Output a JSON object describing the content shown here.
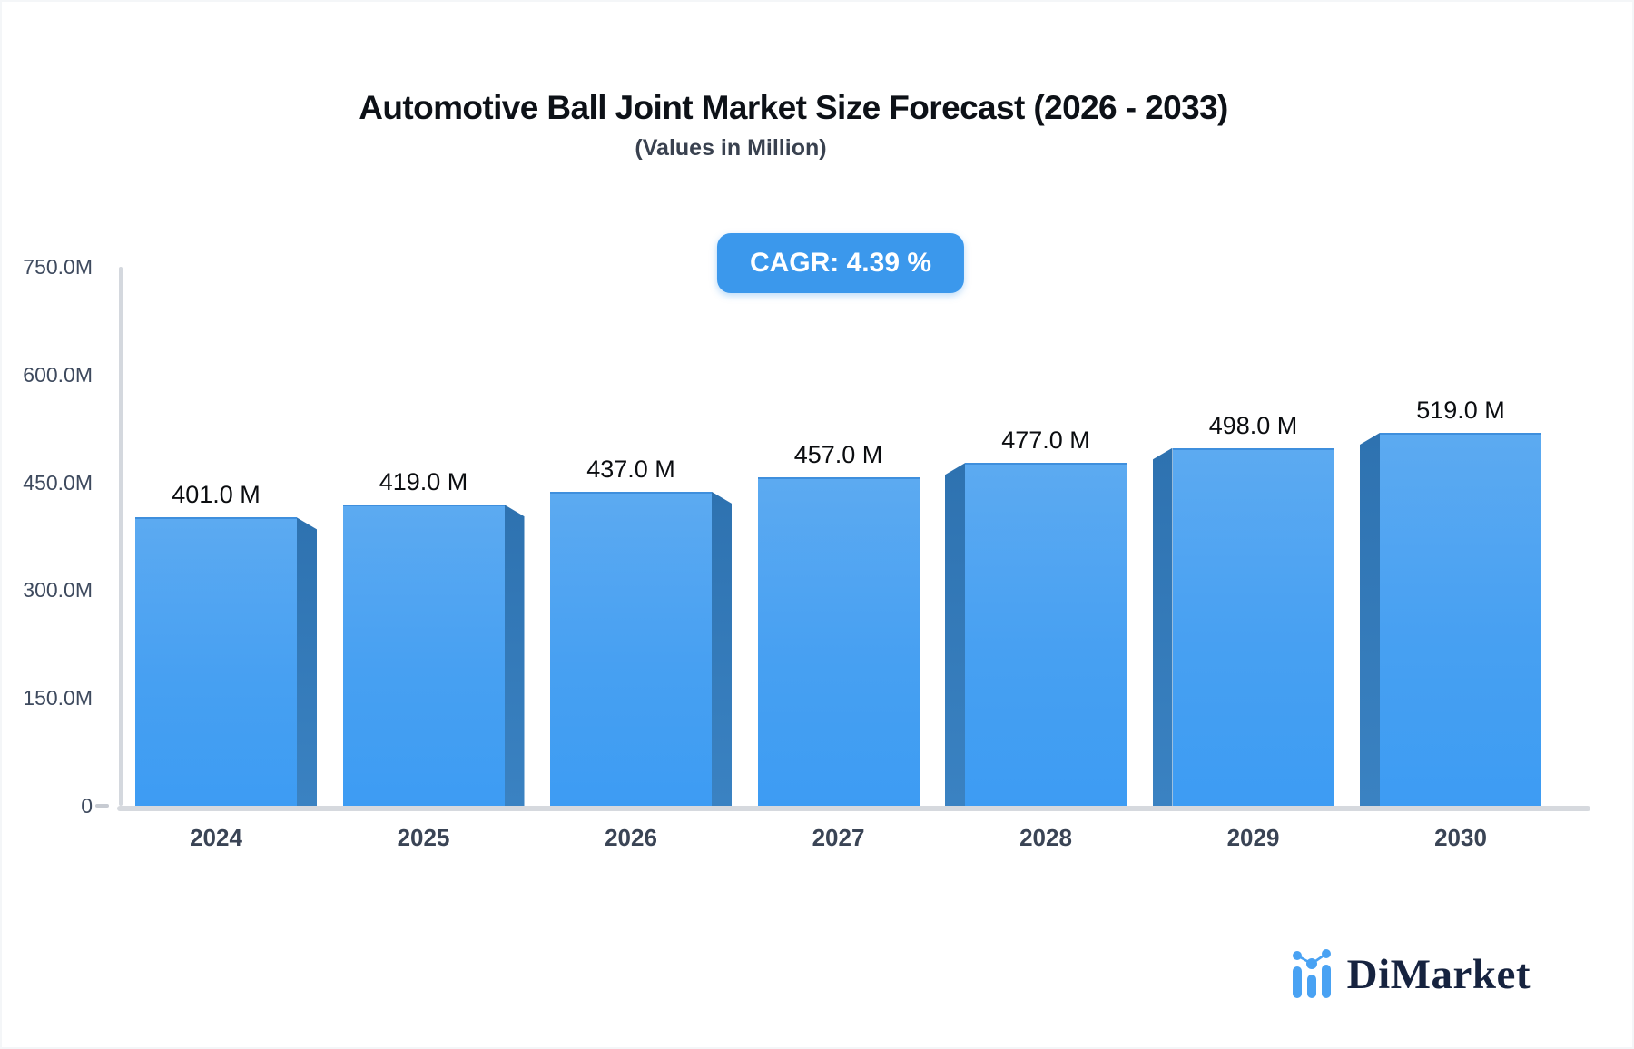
{
  "header": {
    "title": "Automotive Ball Joint Market Size Forecast (2026 - 2033)",
    "subtitle": "(Values in Million)",
    "cagr_badge": "CAGR: 4.39 %"
  },
  "chart_data": {
    "type": "bar",
    "title": "Automotive Ball Joint Market Size Forecast (2026 - 2033)",
    "subtitle": "(Values in Million)",
    "cagr_percent": 4.39,
    "categories": [
      "2024",
      "2025",
      "2026",
      "2027",
      "2028",
      "2029",
      "2030"
    ],
    "values": [
      401,
      419,
      437,
      457,
      477,
      498,
      519
    ],
    "bar_labels": [
      "401.0 M",
      "419.0 M",
      "437.0 M",
      "457.0 M",
      "477.0 M",
      "498.0 M",
      "519.0 M"
    ],
    "unit": "Million",
    "xlabel": "",
    "ylabel": "",
    "ylim": [
      0,
      750
    ],
    "yticks": [
      {
        "label": "750.0M",
        "value": 750
      },
      {
        "label": "600.0M",
        "value": 600
      },
      {
        "label": "450.0M",
        "value": 450
      },
      {
        "label": "300.0M",
        "value": 300
      },
      {
        "label": "150.0M",
        "value": 150
      },
      {
        "label": "0",
        "value": 0
      }
    ],
    "grid": false,
    "legend": false,
    "style": "3d-bars",
    "colors": {
      "bar_face_top": "#5caaf1",
      "bar_face_bottom": "#3d9cf3",
      "bar_side": "#3478b9",
      "badge": "#3b98ec",
      "axis": "#d5d8de",
      "value_label": "#0b0d10",
      "tick_label": "#3e4a5e"
    }
  },
  "logo": {
    "text": "DiMarket",
    "icon": "bar-chart-logo-icon",
    "icon_color": "#49a2f3",
    "text_color": "#16233f"
  }
}
